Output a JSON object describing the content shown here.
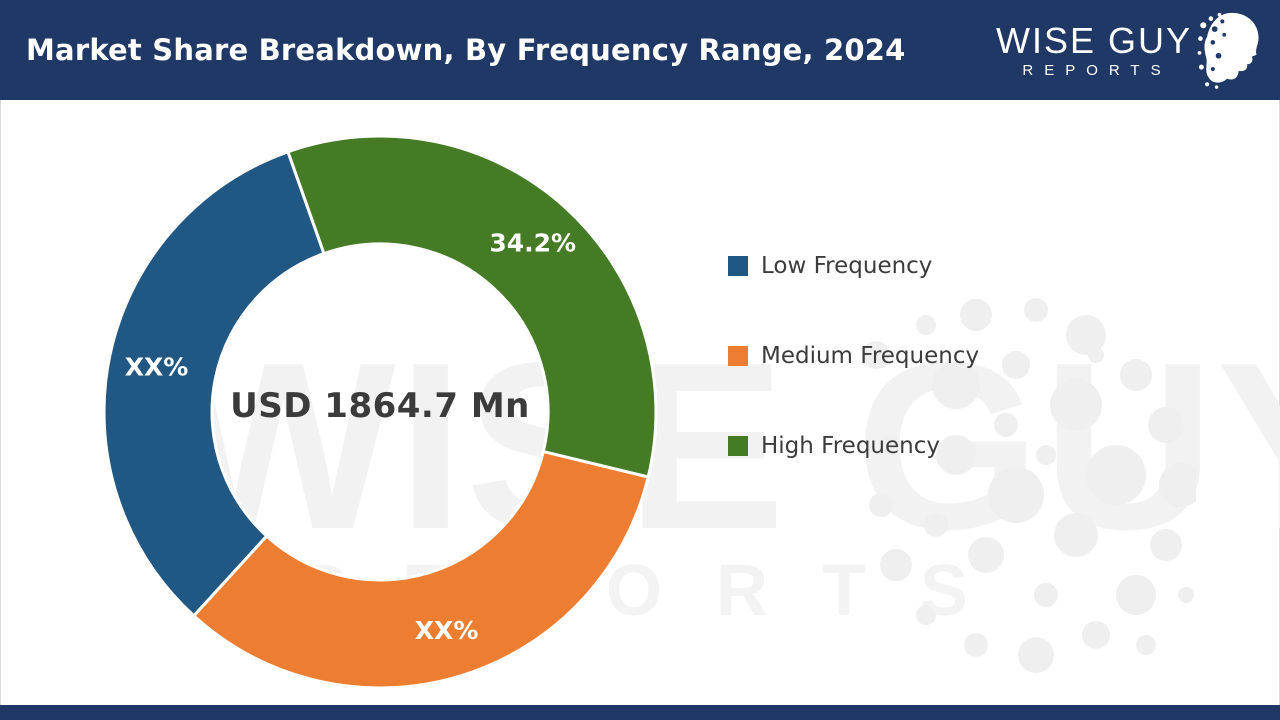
{
  "header": {
    "title": "Market Share Breakdown, By Frequency Range, 2024",
    "bg_color": "#203866",
    "logo": {
      "line1": "WISE GUY",
      "line2": "REPORTS"
    }
  },
  "watermark": {
    "line1": "WISE GUY",
    "line2": "REPORTS"
  },
  "chart_data": {
    "type": "pie",
    "subtype": "donut",
    "title": "Market Share Breakdown, By Frequency Range, 2024",
    "center_label": "USD 1864.7 Mn",
    "start_angle_deg": -19.5,
    "segments": [
      {
        "name": "High Frequency",
        "value_pct": 34.2,
        "label": "34.2%",
        "color": "#457B24"
      },
      {
        "name": "Medium Frequency",
        "value_pct": 33.0,
        "label": "XX%",
        "color": "#ED7D31"
      },
      {
        "name": "Low Frequency",
        "value_pct": 32.8,
        "label": "XX%",
        "color": "#205783"
      }
    ],
    "legend": [
      {
        "label": "Low Frequency",
        "color": "#205783"
      },
      {
        "label": "Medium Frequency",
        "color": "#ED7D31"
      },
      {
        "label": "High Frequency",
        "color": "#457B24"
      }
    ],
    "legend_position": "right",
    "label_color": "#ffffff",
    "center_label_color": "#3b3b3b"
  }
}
